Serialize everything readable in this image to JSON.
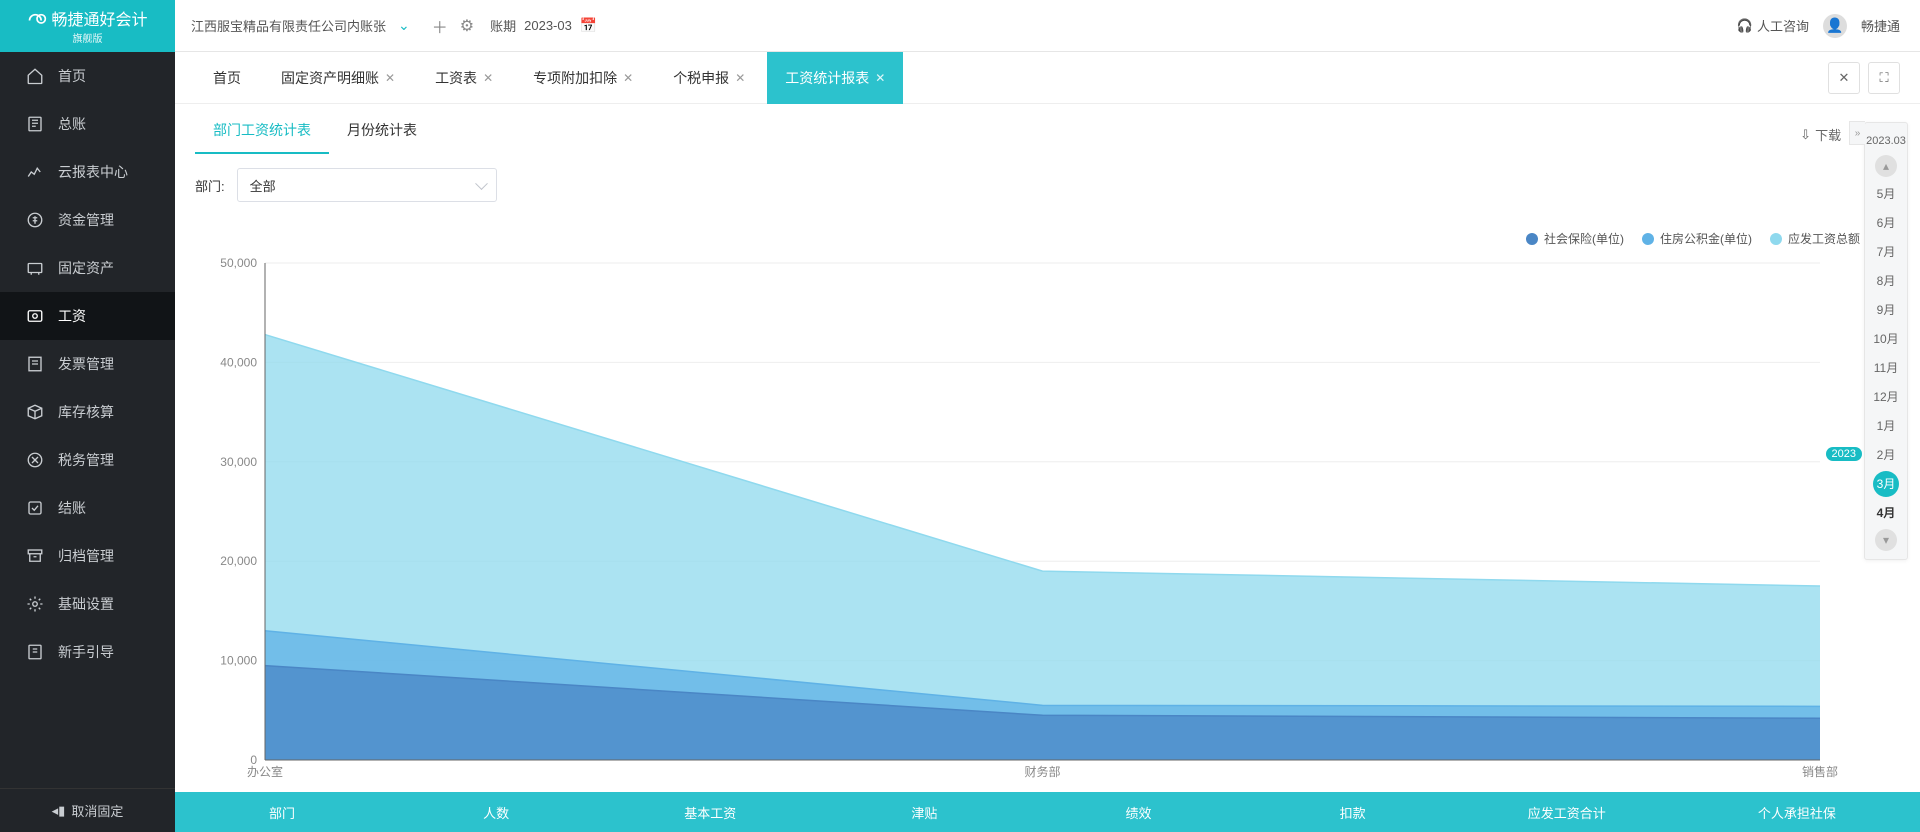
{
  "brand": {
    "name": "畅捷通好会计",
    "edition": "旗舰版"
  },
  "header": {
    "company": "江西服宝精品有限责任公司内账张",
    "period_label": "账期",
    "period_value": "2023-03",
    "support": "人工咨询",
    "username": "畅捷通"
  },
  "sidebar": {
    "items": [
      {
        "icon": "home",
        "label": "首页"
      },
      {
        "icon": "ledger",
        "label": "总账"
      },
      {
        "icon": "cloud-report",
        "label": "云报表中心"
      },
      {
        "icon": "funds",
        "label": "资金管理"
      },
      {
        "icon": "asset",
        "label": "固定资产"
      },
      {
        "icon": "salary",
        "label": "工资",
        "active": true
      },
      {
        "icon": "invoice",
        "label": "发票管理"
      },
      {
        "icon": "inventory",
        "label": "库存核算"
      },
      {
        "icon": "tax",
        "label": "税务管理"
      },
      {
        "icon": "close",
        "label": "结账"
      },
      {
        "icon": "archive",
        "label": "归档管理"
      },
      {
        "icon": "settings",
        "label": "基础设置"
      },
      {
        "icon": "guide",
        "label": "新手引导"
      }
    ],
    "collapse": "取消固定"
  },
  "page_tabs": [
    {
      "label": "首页",
      "closable": false
    },
    {
      "label": "固定资产明细账",
      "closable": true
    },
    {
      "label": "工资表",
      "closable": true
    },
    {
      "label": "专项附加扣除",
      "closable": true
    },
    {
      "label": "个税申报",
      "closable": true
    },
    {
      "label": "工资统计报表",
      "closable": true,
      "active": true
    }
  ],
  "sub_tabs": [
    {
      "label": "部门工资统计表",
      "active": true
    },
    {
      "label": "月份统计表"
    }
  ],
  "actions": {
    "download": "下载",
    "refresh": "刷新"
  },
  "filter": {
    "label": "部门:",
    "value": "全部"
  },
  "chart": {
    "type": "area",
    "y_axis": {
      "min": 0,
      "max": 50000,
      "step": 10000,
      "ticks": [
        0,
        10000,
        20000,
        30000,
        40000,
        50000
      ],
      "tick_labels": [
        "0",
        "10,000",
        "20,000",
        "30,000",
        "40,000",
        "50,000"
      ]
    },
    "x_categories": [
      "办公室",
      "财务部",
      "销售部"
    ],
    "legend": [
      {
        "label": "社会保险(单位)",
        "color": "#4a86c5"
      },
      {
        "label": "住房公积金(单位)",
        "color": "#5fb2e6"
      },
      {
        "label": "应发工资总额",
        "color": "#8fd9ee"
      }
    ],
    "series": [
      {
        "name": "社会保险(单位)",
        "color": "#4a86c5",
        "values": [
          9500,
          4500,
          4200
        ]
      },
      {
        "name": "住房公积金(单位)",
        "color": "#5fb2e6",
        "values": [
          13000,
          5500,
          5400
        ]
      },
      {
        "name": "应发工资总额",
        "color": "#8fd9ee",
        "values": [
          42800,
          19000,
          17500
        ]
      }
    ],
    "background_color": "#ffffff",
    "grid_color": "#eeeeee",
    "axis_color": "#666666",
    "fill_opacity": 0.75
  },
  "table_headers": [
    "部门",
    "人数",
    "基本工资",
    "津贴",
    "绩效",
    "扣款",
    "应发工资合计"
  ],
  "table_right_group": "个人承担社保",
  "month_rail": {
    "year_top": "2023.03",
    "months": [
      {
        "label": "5月"
      },
      {
        "label": "6月"
      },
      {
        "label": "7月"
      },
      {
        "label": "8月"
      },
      {
        "label": "9月"
      },
      {
        "label": "10月"
      },
      {
        "label": "11月"
      },
      {
        "label": "12月"
      },
      {
        "label": "1月"
      },
      {
        "label": "2月"
      },
      {
        "label": "3月",
        "current": true
      },
      {
        "label": "4月",
        "bold": true
      }
    ],
    "year_badge": "2023"
  }
}
